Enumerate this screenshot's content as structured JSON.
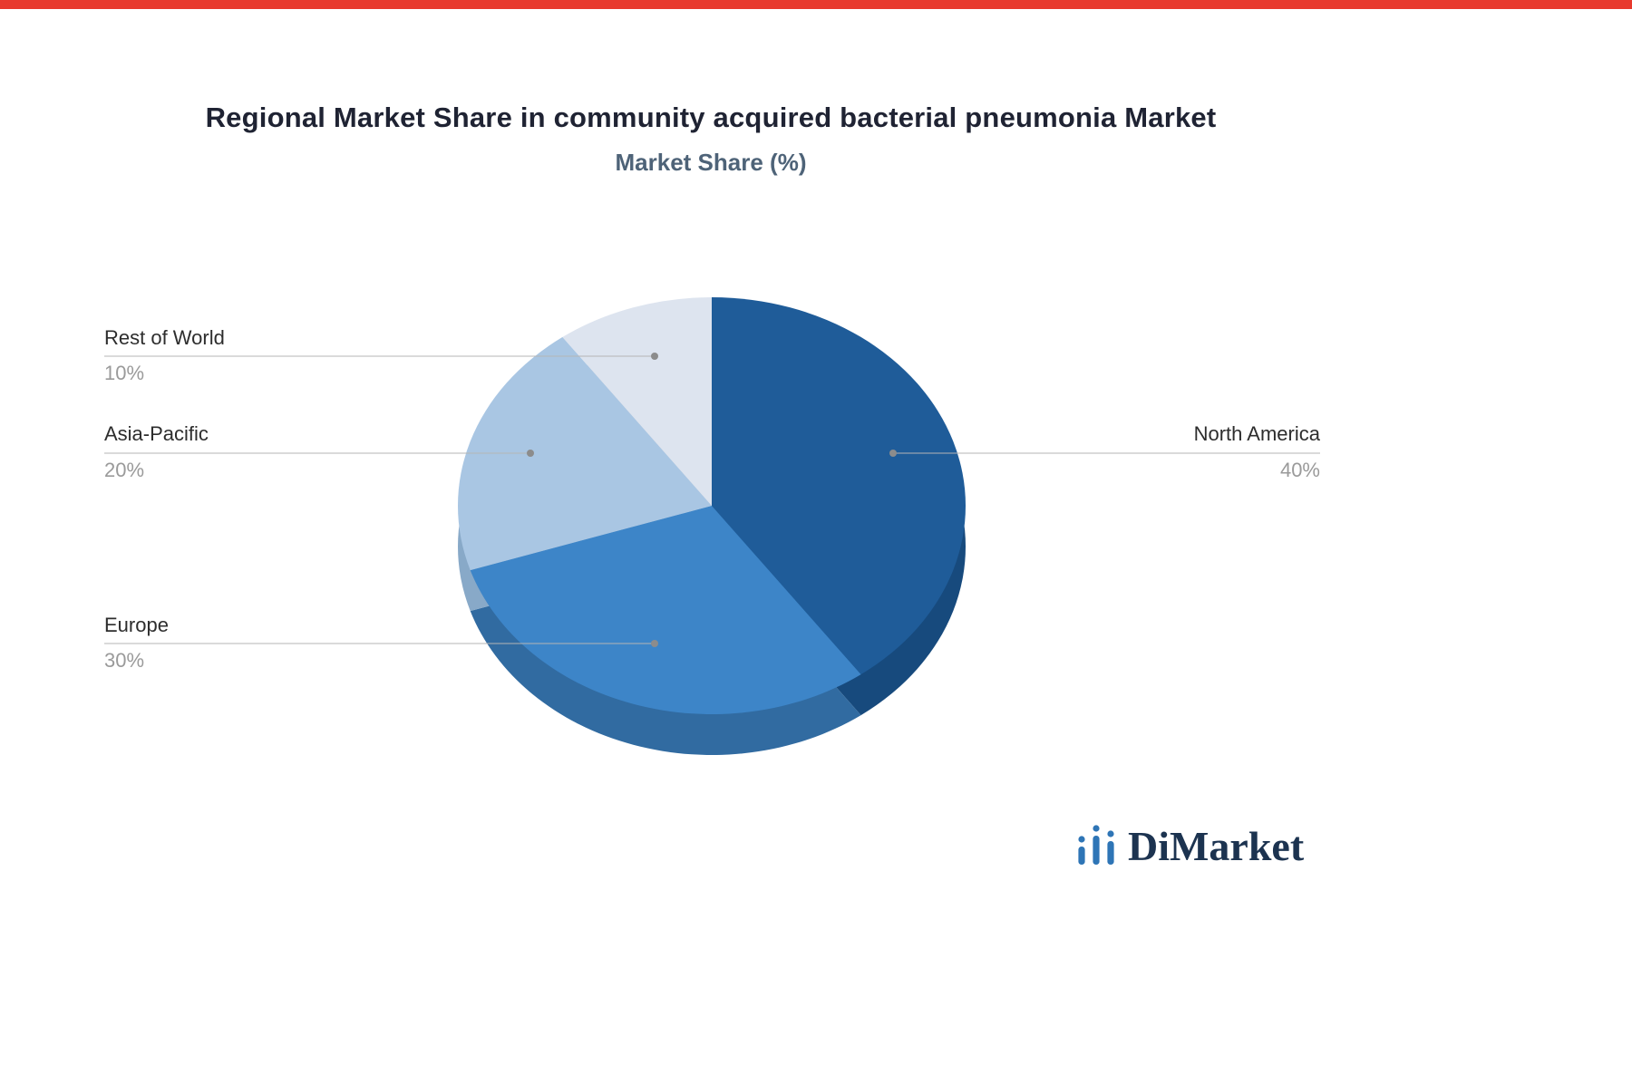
{
  "page": {
    "top_bar_color": "#e8392d",
    "background_color": "#ffffff"
  },
  "header": {
    "title": "Regional Market Share in community acquired bacterial pneumonia Market",
    "subtitle": "Market Share (%)"
  },
  "chart_data": {
    "type": "pie",
    "title": "Regional Market Share in community acquired bacterial pneumonia Market",
    "subtitle": "Market Share (%)",
    "unit": "%",
    "start_angle": "top",
    "direction": "clockwise",
    "style": "3d-extruded",
    "legend_position": "callout-labels",
    "segments": [
      {
        "label": "North America",
        "value": 40,
        "pct_label": "40%",
        "color": "#1f5c99",
        "side_color": "#174a7d"
      },
      {
        "label": "Europe",
        "value": 30,
        "pct_label": "30%",
        "color": "#3d85c8",
        "side_color": "#316ba1"
      },
      {
        "label": "Asia-Pacific",
        "value": 20,
        "pct_label": "20%",
        "color": "#a9c6e3",
        "side_color": "#88a9c8"
      },
      {
        "label": "Rest of World",
        "value": 10,
        "pct_label": "10%",
        "color": "#dde4ef",
        "side_color": "#bac6d5"
      }
    ]
  },
  "logo": {
    "text": "DiMarket",
    "text_color": "#1c3350",
    "icon": "bar-chart-icon",
    "icon_color": "#2e75b6"
  }
}
